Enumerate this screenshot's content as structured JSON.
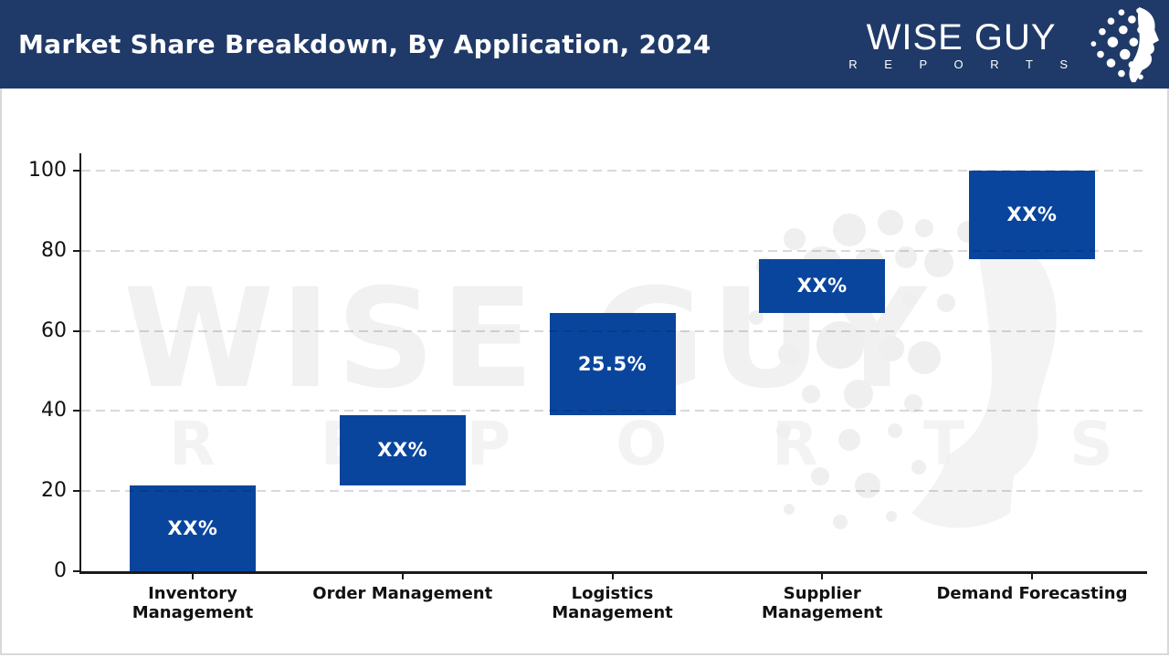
{
  "header": {
    "title": "Market Share Breakdown, By Application, 2024",
    "logo": {
      "line1": "WISE GUY",
      "line2": "R E P O R T S"
    }
  },
  "watermark": {
    "line1": "WISE GUY",
    "line2": "R E P O R T S"
  },
  "colors": {
    "header_bg": "#1f3a68",
    "bar": "#0a459d",
    "bar_label_text": "#ffffff",
    "grid": "#dcdcdc",
    "axis": "#1a1a1a",
    "watermark": "#f0f0f0"
  },
  "chart_data": {
    "type": "bar",
    "subtype": "waterfall-floating-bars",
    "title": "Market Share Breakdown, By Application, 2024",
    "xlabel": "",
    "ylabel": "",
    "categories": [
      "Inventory Management",
      "Order Management",
      "Logistics Management",
      "Supplier Management",
      "Demand Forecasting"
    ],
    "category_label_lines": [
      [
        "Inventory",
        "Management"
      ],
      [
        "Order Management"
      ],
      [
        "Logistics",
        "Management"
      ],
      [
        "Supplier",
        "Management"
      ],
      [
        "Demand Forecasting"
      ]
    ],
    "bars": [
      {
        "category": "Inventory Management",
        "start": 0,
        "end": 21.5,
        "value": 21.5,
        "label": "XX%"
      },
      {
        "category": "Order Management",
        "start": 21.5,
        "end": 39,
        "value": 17.5,
        "label": "XX%"
      },
      {
        "category": "Logistics Management",
        "start": 39,
        "end": 64.5,
        "value": 25.5,
        "label": "25.5%"
      },
      {
        "category": "Supplier Management",
        "start": 64.5,
        "end": 78,
        "value": 13.5,
        "label": "XX%"
      },
      {
        "category": "Demand Forecasting",
        "start": 78,
        "end": 100,
        "value": 22,
        "label": "XX%"
      }
    ],
    "yticks": [
      0,
      20,
      40,
      60,
      80,
      100
    ],
    "ylim": [
      0,
      104
    ],
    "grid": "dashed-horizontal",
    "legend": "none"
  }
}
